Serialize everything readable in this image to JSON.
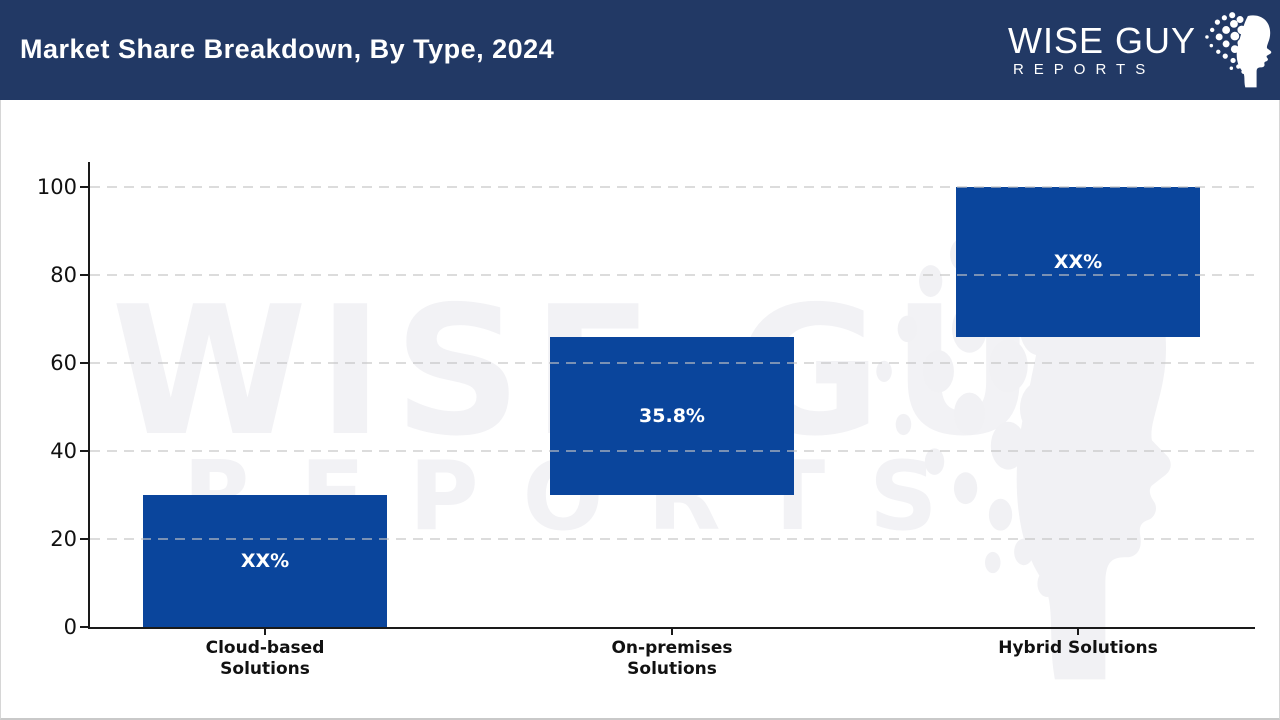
{
  "header": {
    "title": "Market Share Breakdown, By Type, 2024",
    "logo": {
      "wordmark": "WISE GUY",
      "subtext": "REPORTS"
    }
  },
  "watermark": {
    "wordmark": "WISE GUY",
    "subtext": "REPORTS"
  },
  "chart_data": {
    "type": "bar",
    "variant": "floating-segment-waterfall",
    "title": "Market Share Breakdown, By Type, 2024",
    "categories": [
      "Cloud-based\nSolutions",
      "On-premises\nSolutions",
      "Hybrid Solutions"
    ],
    "segments": [
      {
        "category": "Cloud-based Solutions",
        "start": 0,
        "end": 30,
        "label": "XX%"
      },
      {
        "category": "On-premises Solutions",
        "start": 30,
        "end": 65.8,
        "label": "35.8%"
      },
      {
        "category": "Hybrid Solutions",
        "start": 65.8,
        "end": 100,
        "label": "XX%"
      }
    ],
    "xlabel": "",
    "ylabel": "",
    "ylim": [
      0,
      100
    ],
    "yticks": [
      0,
      20,
      40,
      60,
      80,
      100
    ],
    "grid": "horizontal-dashed",
    "legend": "none",
    "colors": {
      "bar": "#0a459c",
      "bar_label": "#ffffff",
      "axis": "#1a1a1a",
      "gridline": "#d9d9d9",
      "header_bg": "#223965",
      "watermark": "#f2f2f5"
    }
  }
}
